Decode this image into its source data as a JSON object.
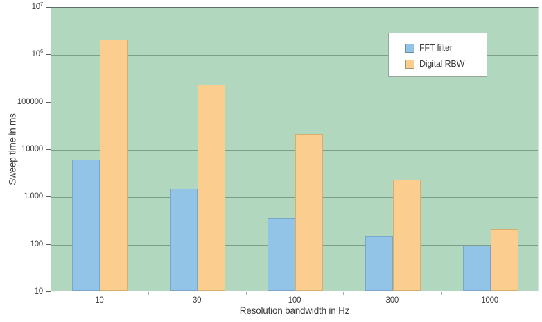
{
  "chart_data": {
    "type": "bar",
    "title": "",
    "xlabel": "Resolution bandwidth in Hz",
    "ylabel": "Sweep time in ms",
    "y_scale": "log",
    "ylim": [
      10,
      10000000
    ],
    "grid": true,
    "legend_position": "top-right",
    "plot_background_color": "#b2d7bf",
    "gridline_color": "#7f9e8a",
    "categories": [
      "10",
      "30",
      "100",
      "300",
      "1000"
    ],
    "y_ticks": [
      {
        "value": 10000000,
        "base": "10",
        "sup": "7"
      },
      {
        "value": 1000000,
        "base": "10",
        "sup": "6"
      },
      {
        "value": 100000,
        "base": "100000"
      },
      {
        "value": 10000,
        "base": "10000"
      },
      {
        "value": 1000,
        "base": "1.000"
      },
      {
        "value": 100,
        "base": "100"
      },
      {
        "value": 10,
        "base": "10"
      }
    ],
    "series": [
      {
        "name": "FFT filter",
        "color": "#92c4e8",
        "border_color": "#79a6c9",
        "values": [
          5900,
          1400,
          350,
          145,
          90
        ]
      },
      {
        "name": "Digital RBW",
        "color": "#fbce90",
        "border_color": "#d9ae6d",
        "values": [
          2000000,
          220000,
          20000,
          2200,
          200
        ]
      }
    ]
  }
}
